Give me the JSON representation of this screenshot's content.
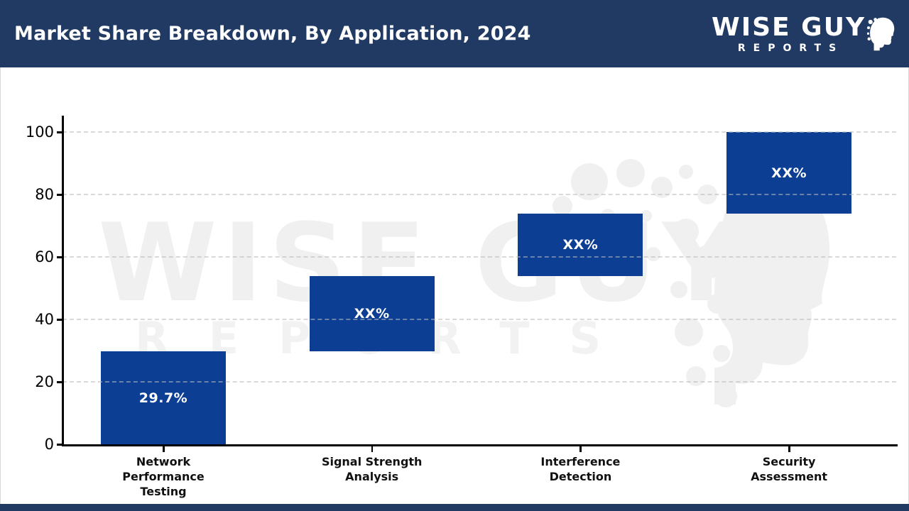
{
  "header": {
    "title": "Market Share Breakdown, By Application, 2024",
    "logo": {
      "line1": "WISE GUY",
      "line2": "REPORTS"
    }
  },
  "watermark": {
    "line1": "WISE GUY",
    "line2": "REPORTS"
  },
  "colors": {
    "header_bg": "#213a64",
    "footer_bg": "#213a64",
    "bar": "#0c3f94",
    "bar_label_text": "#ffffff",
    "axis": "#000000",
    "gridline": "#bbbbbb",
    "watermark": "#f0f0f0"
  },
  "chart_data": {
    "type": "bar",
    "subtype": "waterfall",
    "title": "Market Share Breakdown, By Application, 2024",
    "categories": [
      "Network Performance Testing",
      "Signal Strength Analysis",
      "Interference Detection",
      "Security Assessment"
    ],
    "category_lines": [
      [
        "Network",
        "Performance",
        "Testing"
      ],
      [
        "Signal Strength",
        "Analysis"
      ],
      [
        "Interference",
        "Detection"
      ],
      [
        "Security",
        "Assessment"
      ]
    ],
    "segments": [
      {
        "category": "Network Performance Testing",
        "start": 0,
        "end": 29.7,
        "label": "29.7%"
      },
      {
        "category": "Signal Strength Analysis",
        "start": 29.7,
        "end": 53.8,
        "label": "XX%"
      },
      {
        "category": "Interference Detection",
        "start": 53.8,
        "end": 73.8,
        "label": "XX%"
      },
      {
        "category": "Security Assessment",
        "start": 73.8,
        "end": 100,
        "label": "XX%"
      }
    ],
    "ylim": [
      0,
      100
    ],
    "yticks": [
      0,
      20,
      40,
      60,
      80,
      100
    ],
    "grid": "horizontal-dashed",
    "legend": "none",
    "xlabel": "",
    "ylabel": ""
  }
}
